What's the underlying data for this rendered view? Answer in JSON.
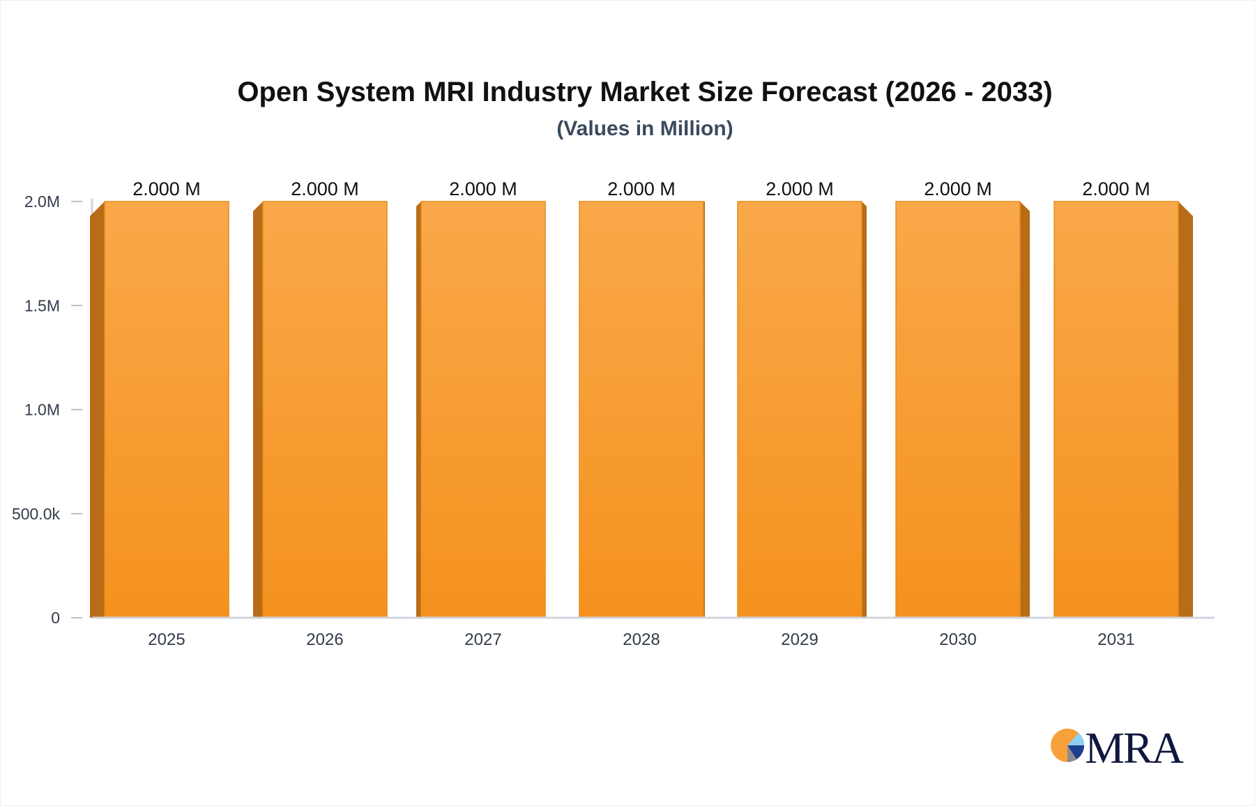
{
  "chart_data": {
    "type": "bar",
    "title": "Open System MRI Industry Market Size Forecast (2026 - 2033)",
    "subtitle": "(Values in Million)",
    "categories": [
      "2025",
      "2026",
      "2027",
      "2028",
      "2029",
      "2030",
      "2031"
    ],
    "values": [
      2.0,
      2.0,
      2.0,
      2.0,
      2.0,
      2.0,
      2.0
    ],
    "data_labels": [
      "2.000 M",
      "2.000 M",
      "2.000 M",
      "2.000 M",
      "2.000 M",
      "2.000 M",
      "2.000 M"
    ],
    "unit": "Million",
    "ylim": [
      0,
      2.0
    ],
    "yticks": [
      0,
      0.5,
      1.0,
      1.5,
      2.0
    ],
    "ytick_labels": [
      "0",
      "500.0k",
      "1.0M",
      "1.5M",
      "2.0M"
    ],
    "grid": false,
    "colors": {
      "bar_top": "#f9a84a",
      "bar_bottom": "#f5921e",
      "bar_side": "#b86c18",
      "axis": "#d0d4dc"
    }
  },
  "logo": {
    "text": "MRA"
  }
}
